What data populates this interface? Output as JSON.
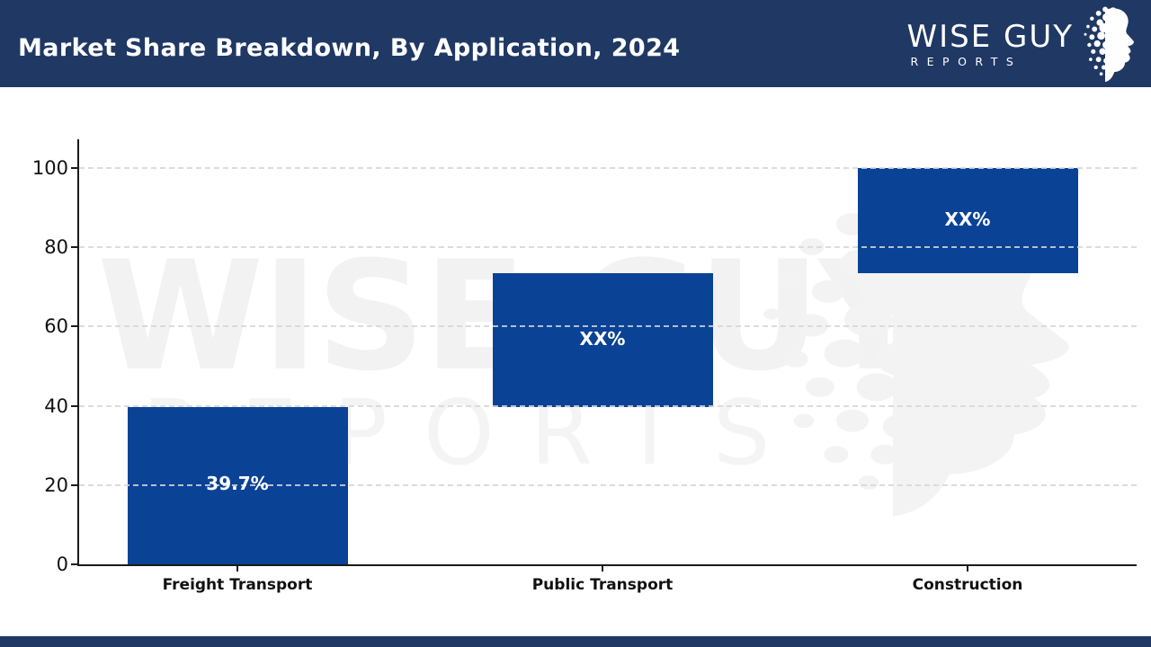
{
  "header": {
    "title": "Market Share Breakdown, By Application, 2024"
  },
  "brand": {
    "name": "WISE GUY",
    "sub": "REPORTS",
    "face_icon": "dotted-face-profile"
  },
  "watermark": {
    "name": "WISE GUY",
    "sub": "REPORTS"
  },
  "chart_data": {
    "type": "bar",
    "subtype": "floating-waterfall",
    "title": "Market Share Breakdown, By Application, 2024",
    "categories": [
      "Freight Transport",
      "Public Transport",
      "Construction"
    ],
    "series": [
      {
        "name": "Market Share (%)",
        "segments": [
          {
            "category": "Freight Transport",
            "start": 0,
            "end": 39.7,
            "label": "39.7%"
          },
          {
            "category": "Public Transport",
            "start": 39.7,
            "end": 73.4,
            "label": "XX%"
          },
          {
            "category": "Construction",
            "start": 73.4,
            "end": 100,
            "label": "XX%"
          }
        ]
      }
    ],
    "xlabel": "",
    "ylabel": "",
    "yticks": [
      0,
      20,
      40,
      60,
      80,
      100
    ],
    "ylim": [
      0,
      107
    ],
    "grid": "horizontal-dashed",
    "legend": "none",
    "colors": {
      "bar": "#0a4296",
      "bar_label": "#ffffff",
      "grid": "#d9d9d9",
      "axis": "#1a1a1a",
      "header_bg": "#1f3864",
      "footer_bg": "#1f3864",
      "watermark": "#f2f2f2"
    }
  }
}
